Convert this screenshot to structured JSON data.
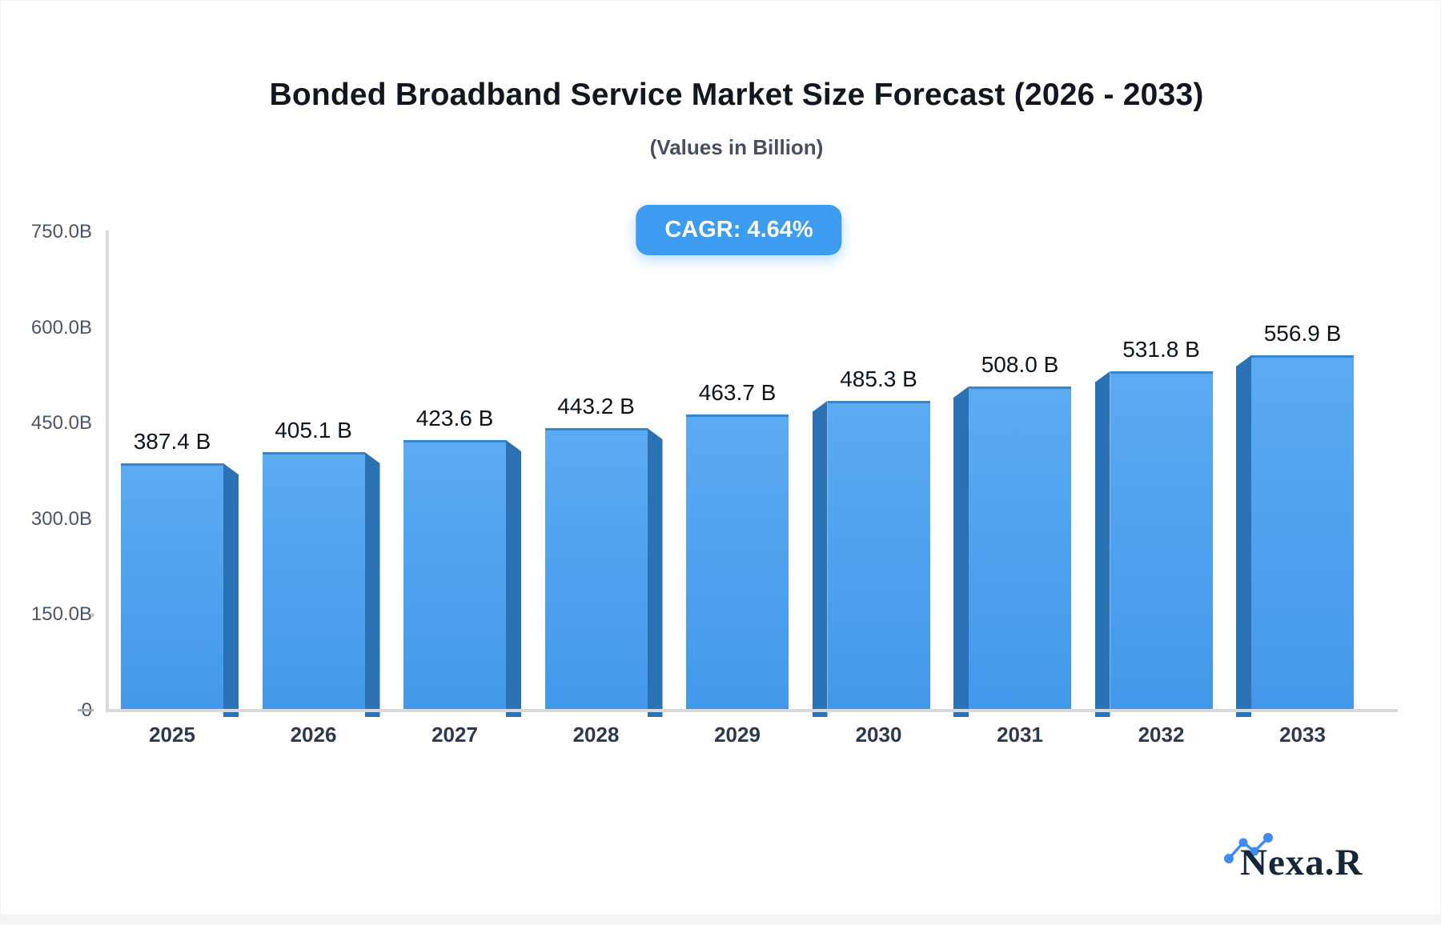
{
  "header": {
    "title": "Bonded Broadband Service Market Size Forecast (2026 - 2033)",
    "subtitle": "(Values in Billion)",
    "cagr_badge": "CAGR: 4.64%"
  },
  "chart_data": {
    "type": "bar",
    "title": "Bonded Broadband Service Market Size Forecast (2026 - 2033)",
    "subtitle": "(Values in Billion)",
    "categories": [
      "2025",
      "2026",
      "2027",
      "2028",
      "2029",
      "2030",
      "2031",
      "2032",
      "2033"
    ],
    "values": [
      387.4,
      405.1,
      423.6,
      443.2,
      463.7,
      485.3,
      508.0,
      531.8,
      556.9
    ],
    "value_labels": [
      "387.4 B",
      "405.1 B",
      "423.6 B",
      "443.2 B",
      "463.7 B",
      "485.3 B",
      "508.0 B",
      "531.8 B",
      "556.9 B"
    ],
    "y_ticks": [
      {
        "label": "750.0B",
        "value": 750
      },
      {
        "label": "600.0B",
        "value": 600
      },
      {
        "label": "450.0B",
        "value": 450
      },
      {
        "label": "300.0B",
        "value": 300
      },
      {
        "label": "150.0B",
        "value": 150
      },
      {
        "label": "0",
        "value": 0
      }
    ],
    "ylim": [
      0,
      750
    ],
    "xlabel": "",
    "ylabel": "",
    "grid": false,
    "legend": false,
    "cagr": "CAGR: 4.64%",
    "bar_color": "#459dec",
    "bar_side_color": "#2a72b4"
  },
  "logo": {
    "text": "Nexa.R",
    "icon": "line-chart-sparkline-icon",
    "icon_color": "#3e8bf5",
    "text_color": "#152638"
  },
  "colors": {
    "badge_bg": "#3d9bf0",
    "badge_text": "#ffffff",
    "axis": "#d6d9dd",
    "tick_label": "#4b5563",
    "x_label": "#2d3a4d",
    "value_label": "#0e141c",
    "title": "#12161f",
    "subtitle": "#454f60",
    "background": "#ffffff"
  }
}
